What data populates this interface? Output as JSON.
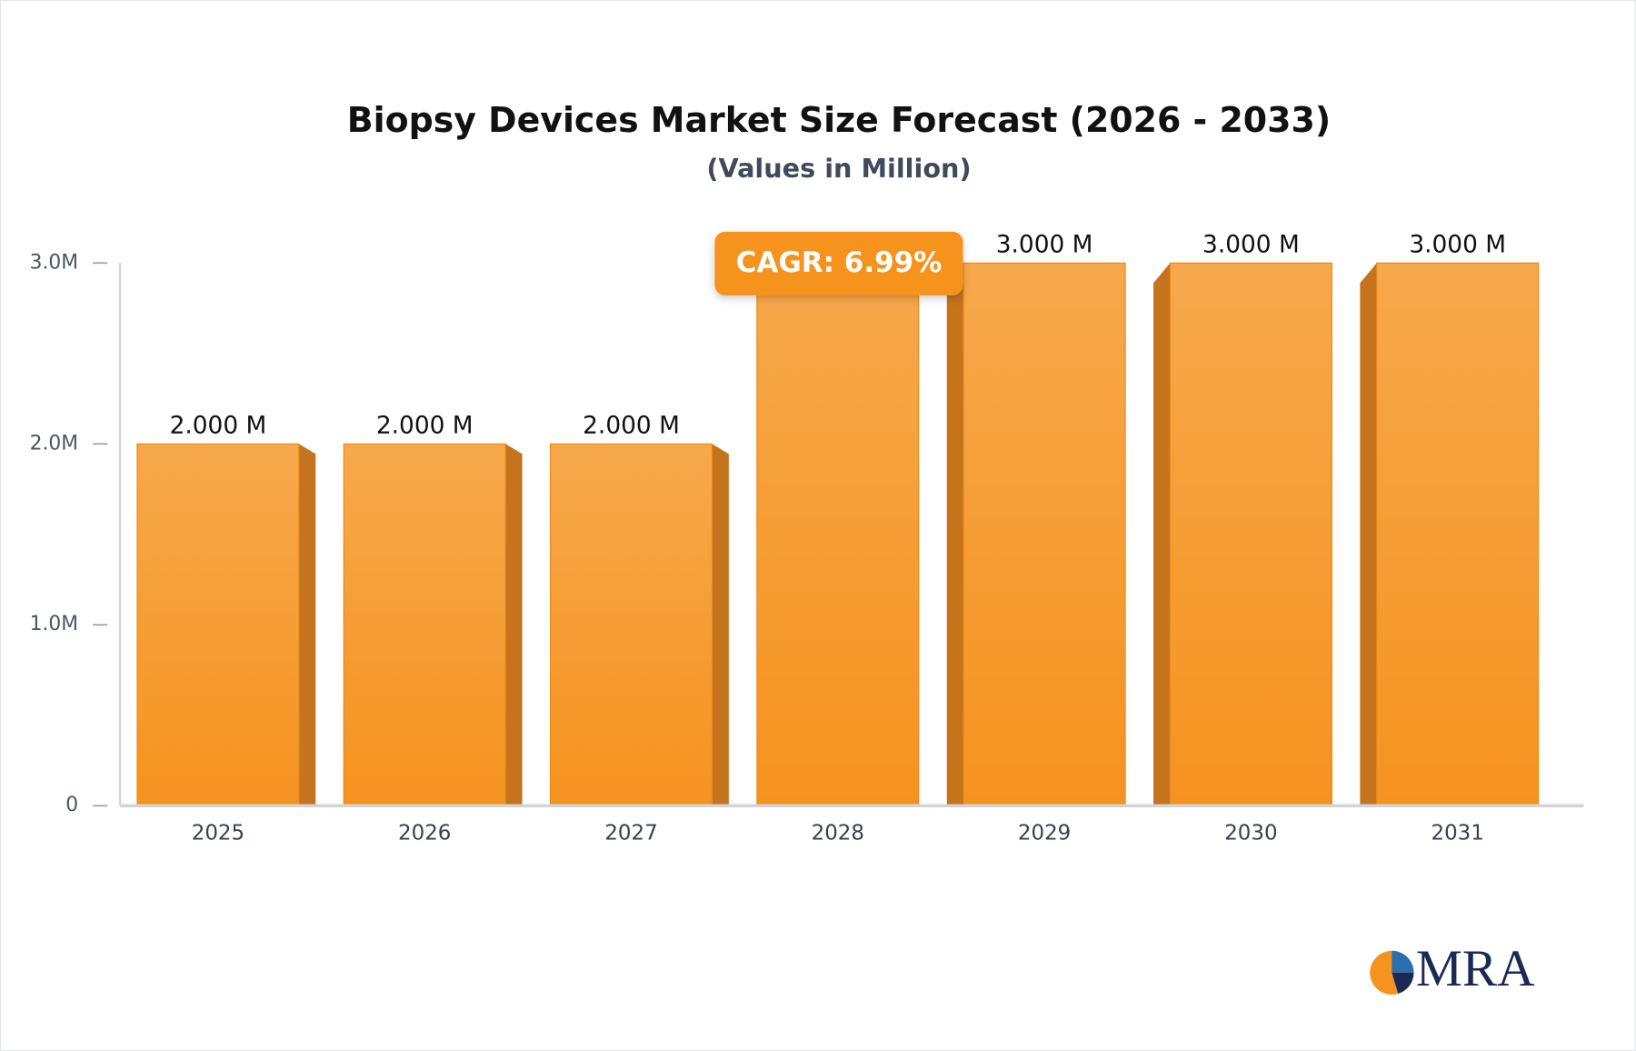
{
  "chart_data": {
    "type": "bar",
    "title": "Biopsy Devices Market Size Forecast (2026 - 2033)",
    "subtitle": "(Values in Million)",
    "categories": [
      "2025",
      "2026",
      "2027",
      "2028",
      "2029",
      "2030",
      "2031"
    ],
    "values": [
      2,
      2,
      2,
      3,
      3,
      3,
      3
    ],
    "value_labels": [
      "2.000 M",
      "2.000 M",
      "2.000 M",
      null,
      "3.000 M",
      "3.000 M",
      "3.000 M"
    ],
    "color": "#f5951f",
    "ylim": [
      0,
      3
    ],
    "yticks": [
      0,
      {
        "value": 1,
        "label": "1.0M"
      },
      {
        "value": 2,
        "label": "2.0M"
      },
      {
        "value": 3,
        "label": "3.0M"
      }
    ],
    "annotation": "CAGR: 6.99%",
    "logo": "MRA"
  }
}
